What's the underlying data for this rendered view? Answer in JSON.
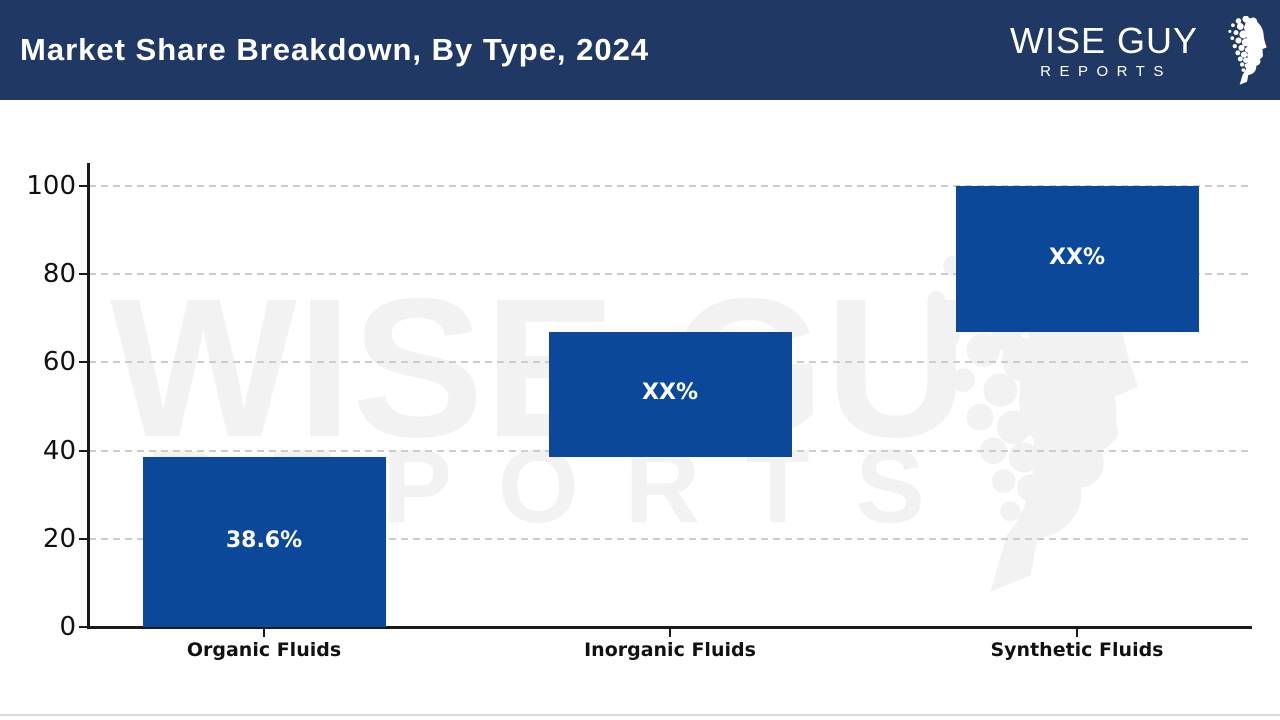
{
  "header": {
    "title": "Market Share Breakdown, By Type, 2024",
    "logo": {
      "line1": "WISE GUY",
      "line2": "REPORTS"
    }
  },
  "watermark": {
    "line1": "WISE GUY",
    "line2": "REPORTS"
  },
  "colors": {
    "header_bg": "#1f3864",
    "title_text": "#ffffff",
    "bar": "#0b4899",
    "bar_label": "#ffffff",
    "grid": "#cccccc",
    "axis": "#1a1a1a",
    "tick_text": "#111111",
    "watermark": "#f2f2f2",
    "footer_line": "#d9d9d9"
  },
  "chart_data": {
    "type": "bar",
    "subtype": "floating-waterfall",
    "title": "Market Share Breakdown, By Type, 2024",
    "categories": [
      "Organic Fluids",
      "Inorganic Fluids",
      "Synthetic Fluids"
    ],
    "segments": [
      {
        "category": "Organic Fluids",
        "start": 0,
        "end": 38.6,
        "label": "38.6%"
      },
      {
        "category": "Inorganic Fluids",
        "start": 38.6,
        "end": 67,
        "label": "XX%"
      },
      {
        "category": "Synthetic Fluids",
        "start": 67,
        "end": 100,
        "label": "XX%"
      }
    ],
    "yticks": [
      0,
      20,
      40,
      60,
      80,
      100
    ],
    "ylim": [
      0,
      105
    ],
    "xlabel": "",
    "ylabel": "",
    "grid": "horizontal-dashed",
    "legend": "none",
    "bar_color": "#0b4899",
    "value_labels_inside": true
  }
}
